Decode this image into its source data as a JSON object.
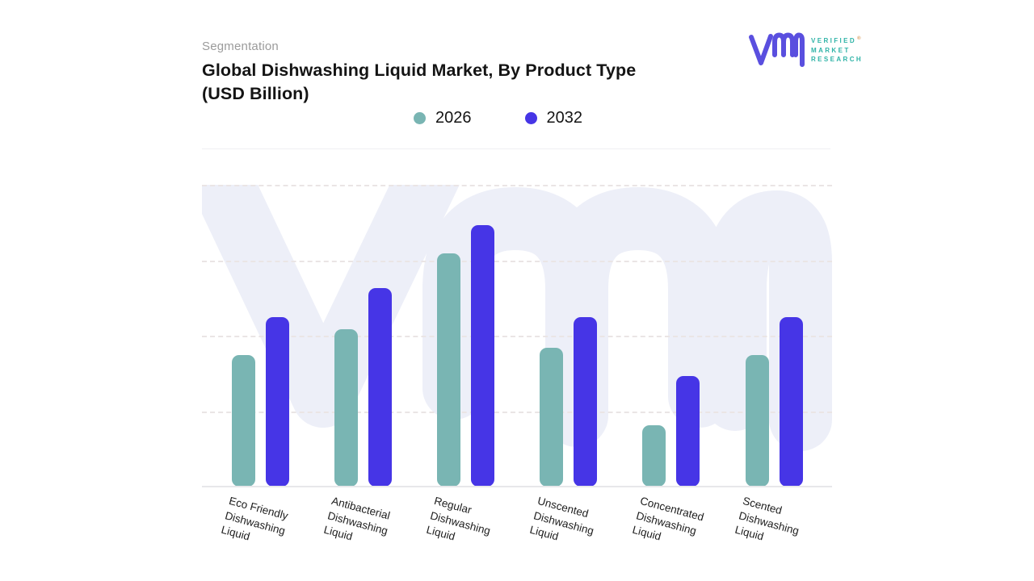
{
  "header": {
    "eyebrow": "Segmentation",
    "title": "Global Dishwashing Liquid Market, By Product Type\n(USD Billion)"
  },
  "logo": {
    "name": "verified-market-research",
    "line1": "VERIFIED",
    "line2": "MARKET",
    "line3": "RESEARCH",
    "registered_mark": "®",
    "glyph_color": "#5a4fdf",
    "text_color": "#2fb3a7"
  },
  "legend": [
    {
      "label": "2026",
      "color": "#79b5b3"
    },
    {
      "label": "2032",
      "color": "#4635e6"
    }
  ],
  "chart_data": {
    "type": "bar",
    "title": "Global Dishwashing Liquid Market, By Product Type (USD Billion)",
    "xlabel": "",
    "ylabel": "",
    "categories": [
      "Eco Friendly Dishwashing Liquid",
      "Antibacterial Dishwashing Liquid",
      "Regular Dishwashing Liquid",
      "Unscented Dishwashing Liquid",
      "Concentrated Dishwashing Liquid",
      "Scented Dishwashing Liquid"
    ],
    "category_label_lines": [
      [
        "Eco Friendly",
        "Dishwashing",
        "Liquid"
      ],
      [
        "Antibacterial",
        "Dishwashing",
        "Liquid"
      ],
      [
        "Regular",
        "Dishwashing",
        "Liquid"
      ],
      [
        "Unscented",
        "Dishwashing",
        "Liquid"
      ],
      [
        "Concentrated",
        "Dishwashing",
        "Liquid"
      ],
      [
        "Scented",
        "Dishwashing",
        "Liquid"
      ]
    ],
    "series": [
      {
        "name": "2026",
        "color": "#79b5b3",
        "values": [
          1.74,
          2.09,
          3.09,
          1.84,
          0.81,
          1.74
        ]
      },
      {
        "name": "2032",
        "color": "#4635e6",
        "values": [
          2.25,
          2.63,
          3.47,
          2.25,
          1.47,
          2.25
        ]
      }
    ],
    "ylim": [
      0,
      4
    ],
    "y_axis_tick_labels_visible": false,
    "note": "no numeric axis labels shown in chart; values estimated in horizontal-gridline units",
    "grid": "horizontal-dashed",
    "legend_position": "top-center",
    "watermark": "vmr-monogram",
    "watermark_color": "#edeff8"
  }
}
